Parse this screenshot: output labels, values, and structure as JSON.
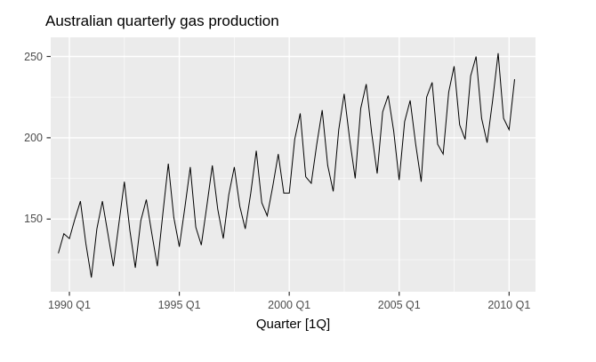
{
  "title": "Australian quarterly gas production",
  "chart_data": {
    "type": "line",
    "title": "Australian quarterly gas production",
    "xlabel": "Quarter [1Q]",
    "ylabel": "",
    "legend": "none",
    "grid": "on",
    "panel_bg_color": "#ebebeb",
    "grid_color": "#ffffff",
    "line_color": "#000000",
    "tick_label_color": "#4d4d4d",
    "ylim": [
      105,
      262
    ],
    "y_major_ticks": [
      250,
      200,
      150
    ],
    "y_minor_ticks": [
      225,
      175,
      125
    ],
    "y_tick_labels": [
      "250",
      "200",
      "150"
    ],
    "x_major_ticks": [
      "1990 Q1",
      "1995 Q1",
      "2000 Q1",
      "2005 Q1",
      "2010 Q1"
    ],
    "x_minor_ticks": [
      "1992 Q3",
      "1997 Q3",
      "2002 Q3",
      "2007 Q3"
    ],
    "x": [
      "1989 Q3",
      "1989 Q4",
      "1990 Q1",
      "1990 Q2",
      "1990 Q3",
      "1990 Q4",
      "1991 Q1",
      "1991 Q2",
      "1991 Q3",
      "1991 Q4",
      "1992 Q1",
      "1992 Q2",
      "1992 Q3",
      "1992 Q4",
      "1993 Q1",
      "1993 Q2",
      "1993 Q3",
      "1993 Q4",
      "1994 Q1",
      "1994 Q2",
      "1994 Q3",
      "1994 Q4",
      "1995 Q1",
      "1995 Q2",
      "1995 Q3",
      "1995 Q4",
      "1996 Q1",
      "1996 Q2",
      "1996 Q3",
      "1996 Q4",
      "1997 Q1",
      "1997 Q2",
      "1997 Q3",
      "1997 Q4",
      "1998 Q1",
      "1998 Q2",
      "1998 Q3",
      "1998 Q4",
      "1999 Q1",
      "1999 Q2",
      "1999 Q3",
      "1999 Q4",
      "2000 Q1",
      "2000 Q2",
      "2000 Q3",
      "2000 Q4",
      "2001 Q1",
      "2001 Q2",
      "2001 Q3",
      "2001 Q4",
      "2002 Q1",
      "2002 Q2",
      "2002 Q3",
      "2002 Q4",
      "2003 Q1",
      "2003 Q2",
      "2003 Q3",
      "2003 Q4",
      "2004 Q1",
      "2004 Q2",
      "2004 Q3",
      "2004 Q4",
      "2005 Q1",
      "2005 Q2",
      "2005 Q3",
      "2005 Q4",
      "2006 Q1",
      "2006 Q2",
      "2006 Q3",
      "2006 Q4",
      "2007 Q1",
      "2007 Q2",
      "2007 Q3",
      "2007 Q4",
      "2008 Q1",
      "2008 Q2",
      "2008 Q3",
      "2008 Q4",
      "2009 Q1",
      "2009 Q2",
      "2009 Q3",
      "2009 Q4",
      "2010 Q1",
      "2010 Q2"
    ],
    "values": [
      129,
      141,
      138,
      150,
      161,
      135,
      114,
      144,
      161,
      141,
      121,
      147,
      173,
      143,
      120,
      149,
      162,
      141,
      121,
      153,
      184,
      151,
      133,
      157,
      182,
      145,
      134,
      158,
      183,
      156,
      138,
      165,
      182,
      158,
      144,
      166,
      192,
      160,
      152,
      170,
      190,
      166,
      166,
      199,
      215,
      176,
      172,
      196,
      217,
      183,
      167,
      205,
      227,
      199,
      175,
      218,
      233,
      203,
      178,
      216,
      226,
      204,
      174,
      210,
      223,
      196,
      173,
      225,
      234,
      196,
      190,
      228,
      244,
      208,
      199,
      238,
      250,
      212,
      197,
      223,
      252,
      212,
      205,
      236
    ]
  }
}
